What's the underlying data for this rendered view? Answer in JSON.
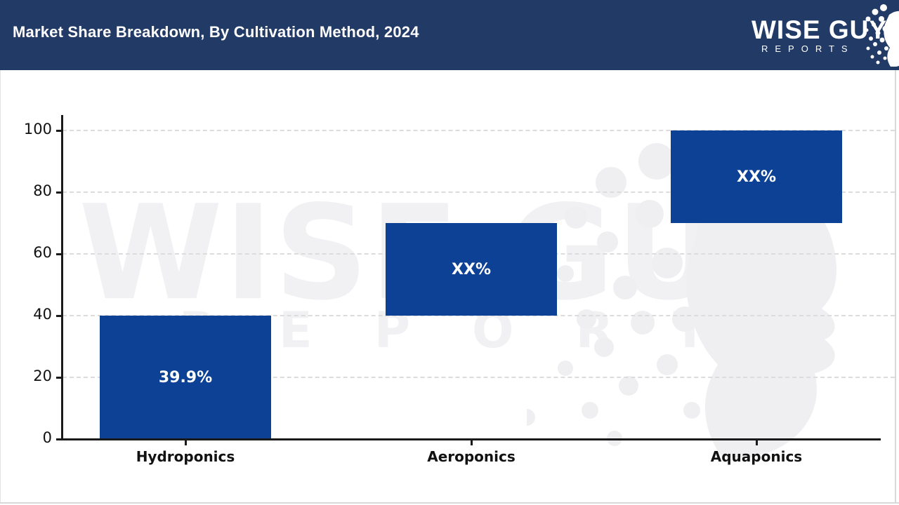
{
  "header": {
    "title": "Market Share Breakdown, By Cultivation Method, 2024",
    "bg_color": "#223A66",
    "logo_line1": "WISE GUY",
    "logo_line2": "REPORTS"
  },
  "watermark": {
    "line1": "WISE GUY",
    "line2": "REPORTS"
  },
  "chart_data": {
    "type": "bar",
    "subtype": "floating-waterfall",
    "title": "Market Share Breakdown, By Cultivation Method, 2024",
    "categories": [
      "Hydroponics",
      "Aeroponics",
      "Aquaponics"
    ],
    "bars": [
      {
        "category": "Hydroponics",
        "from": 0,
        "to": 39.9,
        "label": "39.9%"
      },
      {
        "category": "Aeroponics",
        "from": 39.9,
        "to": 70,
        "label": "XX%"
      },
      {
        "category": "Aquaponics",
        "from": 70,
        "to": 100,
        "label": "XX%"
      }
    ],
    "yticks": [
      0,
      20,
      40,
      60,
      80,
      100
    ],
    "ylim": [
      0,
      105
    ],
    "xlabel": "",
    "ylabel": "",
    "grid": "horizontal-dashed",
    "legend": false,
    "bar_color": "#0C4196",
    "bar_label_color": "#FFFFFF",
    "axis_color": "#1A1A1A",
    "gridline_color": "#DCDCDC"
  }
}
